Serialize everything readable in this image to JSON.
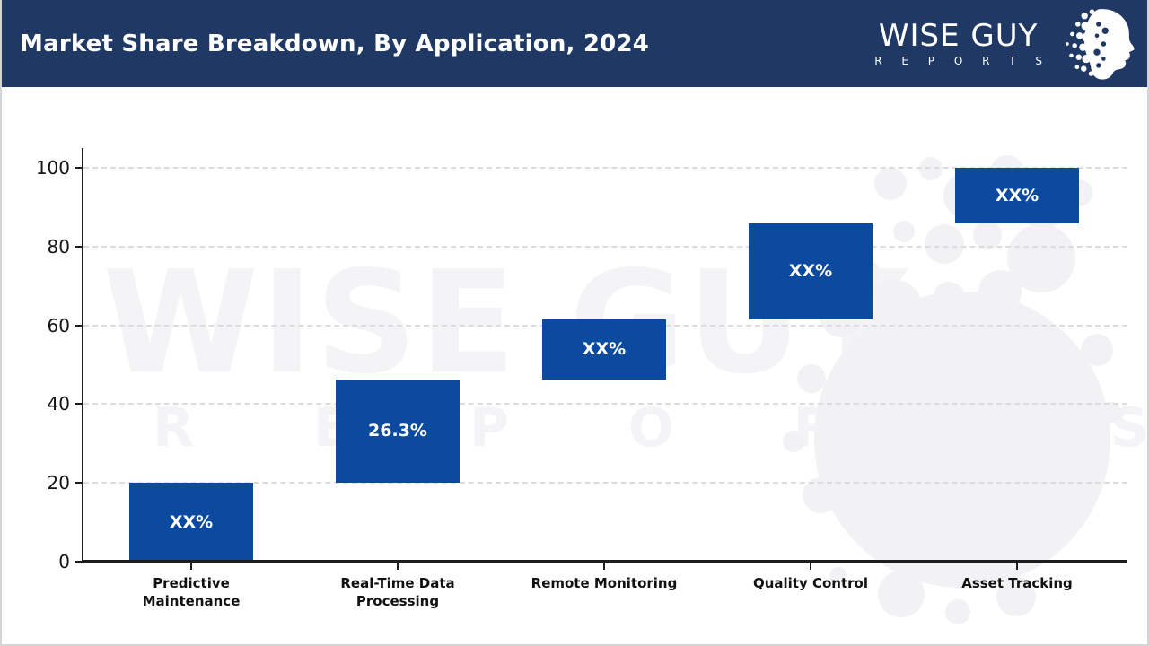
{
  "header": {
    "title": "Market Share Breakdown, By Application, 2024",
    "logo": {
      "line1": "WISE GUY",
      "line2": "R E P O R T S"
    }
  },
  "watermark": {
    "line1": "WISE GUY",
    "line2": "R E P O R T S"
  },
  "colors": {
    "header_bg": "#1f3864",
    "bar_fill": "#0b4a9e",
    "bar_label": "#ffffff",
    "gridline": "#dcdcdc",
    "axis": "#1d1d1d",
    "watermark": "#f4f4f6"
  },
  "chart_data": {
    "type": "bar",
    "subtype": "waterfall",
    "title": "Market Share Breakdown, By Application, 2024",
    "xlabel": "",
    "ylabel": "",
    "ylim": [
      0,
      100
    ],
    "yticks": [
      0,
      20,
      40,
      60,
      80,
      100
    ],
    "grid": true,
    "grid_style": "dashed",
    "legend": "none",
    "categories": [
      "Predictive Maintenance",
      "Real-Time Data Processing",
      "Remote Monitoring",
      "Quality Control",
      "Asset Tracking"
    ],
    "category_lines": [
      [
        "Predictive",
        "Maintenance"
      ],
      [
        "Real-Time Data",
        "Processing"
      ],
      [
        "Remote Monitoring"
      ],
      [
        "Quality Control"
      ],
      [
        "Asset Tracking"
      ]
    ],
    "segments": [
      {
        "category": "Predictive Maintenance",
        "start": 0,
        "end": 20,
        "value": 20,
        "label": "XX%"
      },
      {
        "category": "Real-Time Data Processing",
        "start": 20,
        "end": 46.3,
        "value": 26.3,
        "label": "26.3%"
      },
      {
        "category": "Remote Monitoring",
        "start": 46.3,
        "end": 61.5,
        "value": 15.2,
        "label": "XX%"
      },
      {
        "category": "Quality Control",
        "start": 61.5,
        "end": 85.9,
        "value": 24.4,
        "label": "XX%"
      },
      {
        "category": "Asset Tracking",
        "start": 85.9,
        "end": 100,
        "value": 14.1,
        "label": "XX%"
      }
    ]
  }
}
